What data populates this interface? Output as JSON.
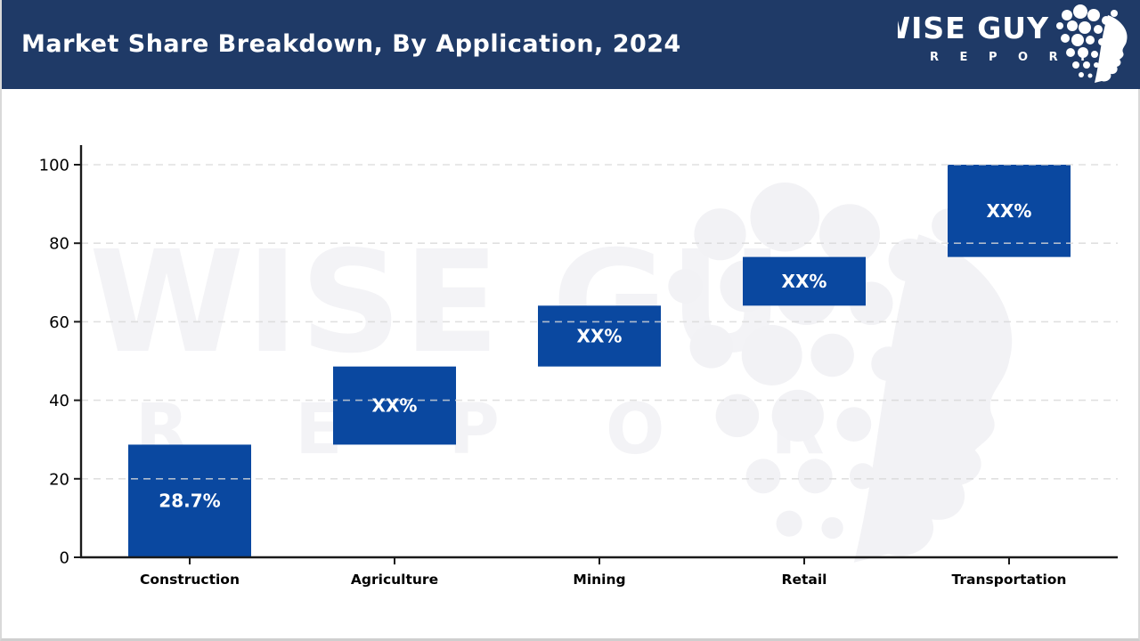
{
  "header": {
    "title": "Market Share Breakdown, By Application, 2024",
    "background_color": "#1f3a67",
    "logo": {
      "line1": "WISE GUY",
      "line2": "R E P O R T S"
    }
  },
  "watermark": {
    "line1": "WISE GU",
    "line2": "R E P O R T"
  },
  "chart_data": {
    "type": "bar",
    "subtype": "waterfall",
    "title": "Market Share Breakdown, By Application, 2024",
    "categories": [
      "Construction",
      "Agriculture",
      "Mining",
      "Retail",
      "Transportation"
    ],
    "segments": [
      {
        "category": "Construction",
        "start": 0,
        "end": 28.7,
        "label": "28.7%"
      },
      {
        "category": "Agriculture",
        "start": 28.7,
        "end": 48.6,
        "label": "XX%"
      },
      {
        "category": "Mining",
        "start": 48.6,
        "end": 64.1,
        "label": "XX%"
      },
      {
        "category": "Retail",
        "start": 64.1,
        "end": 76.5,
        "label": "XX%"
      },
      {
        "category": "Transportation",
        "start": 76.5,
        "end": 100,
        "label": "XX%"
      }
    ],
    "xlabel": "",
    "ylabel": "",
    "ylim": [
      0,
      100
    ],
    "yticks": [
      0,
      20,
      40,
      60,
      80,
      100
    ],
    "grid": "horizontal-dashed",
    "legend": "none",
    "bar_color": "#0a48a0",
    "bar_label_color": "#ffffff",
    "axis_color": "#1a1a1a",
    "tick_label_color": "#000000",
    "grid_color": "#d9d9d9"
  }
}
